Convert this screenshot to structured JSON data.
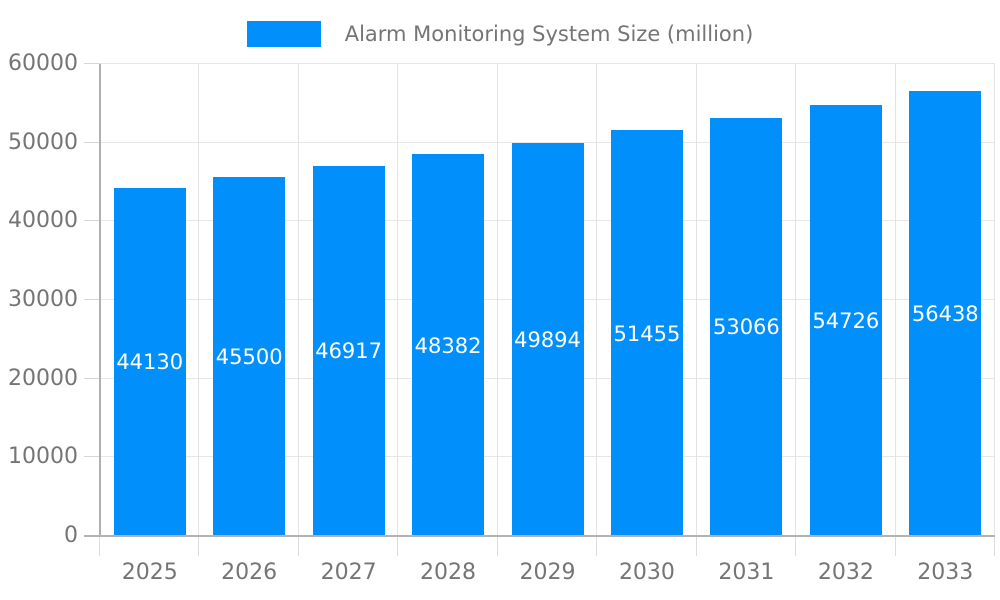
{
  "chart_data": {
    "type": "bar",
    "title": "Alarm Monitoring System Size (million)",
    "legend_position": "top",
    "grid": true,
    "categories": [
      "2025",
      "2026",
      "2027",
      "2028",
      "2029",
      "2030",
      "2031",
      "2032",
      "2033"
    ],
    "series": [
      {
        "name": "Alarm Monitoring System Size (million)",
        "values": [
          44130,
          45500,
          46917,
          48382,
          49894,
          51455,
          53066,
          54726,
          56438
        ]
      }
    ],
    "xlabel": "",
    "ylabel": "",
    "ylim": [
      0,
      60000
    ],
    "y_ticks": [
      0,
      10000,
      20000,
      30000,
      40000,
      50000,
      60000
    ],
    "bar_color": "#008FFB",
    "bar_label_color": "#FFFFFF",
    "axis_text_color": "#757575"
  }
}
